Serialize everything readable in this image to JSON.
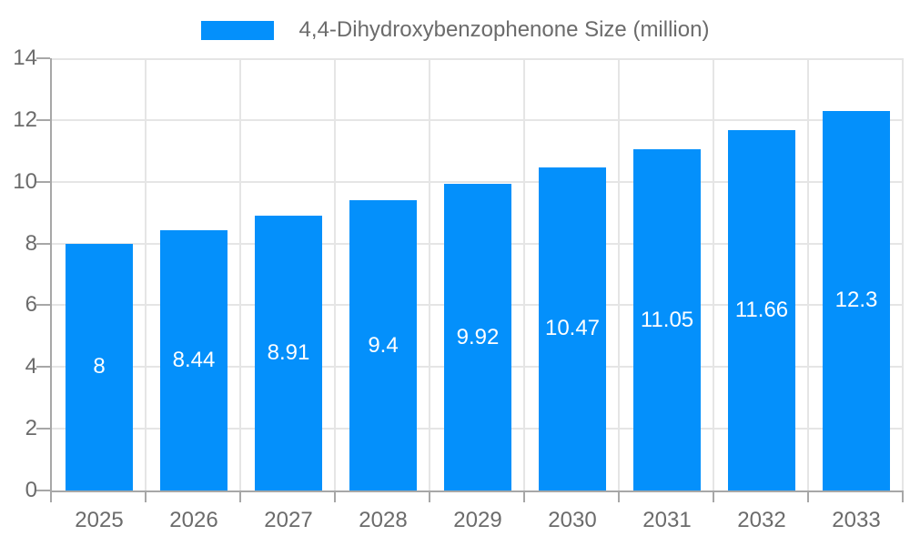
{
  "legend": {
    "label": "4,4-Dihydroxybenzophenone Size (million)"
  },
  "chart_data": {
    "type": "bar",
    "title": "4,4-Dihydroxybenzophenone Size (million)",
    "series_name": "4,4-Dihydroxybenzophenone Size (million)",
    "categories": [
      "2025",
      "2026",
      "2027",
      "2028",
      "2029",
      "2030",
      "2031",
      "2032",
      "2033"
    ],
    "values": [
      8,
      8.44,
      8.91,
      9.4,
      9.92,
      10.47,
      11.05,
      11.66,
      12.3
    ],
    "value_labels": [
      "8",
      "8.44",
      "8.91",
      "9.4",
      "9.92",
      "10.47",
      "11.05",
      "11.66",
      "12.3"
    ],
    "xlabel": "",
    "ylabel": "",
    "ylim": [
      0,
      14
    ],
    "yticks": [
      0,
      2,
      4,
      6,
      8,
      10,
      12,
      14
    ],
    "grid": true,
    "legend_position": "top-center",
    "colors": {
      "bar": "#0490FB",
      "bar_label_text": "#FFFFFF",
      "axis_text": "#6B6B6B",
      "axis_line": "#A7A7A7",
      "gridline": "#E5E5E5",
      "background": "#FFFFFF"
    }
  }
}
